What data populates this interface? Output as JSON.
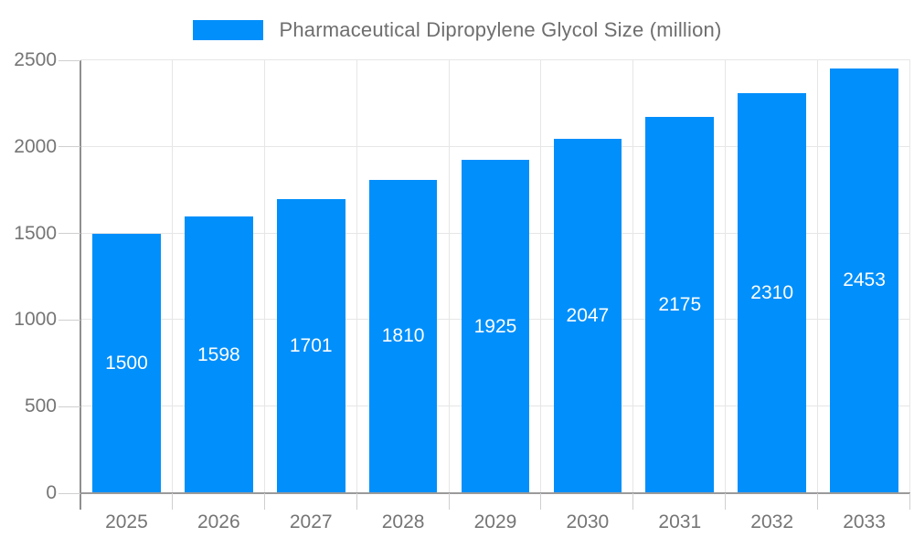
{
  "chart_data": {
    "type": "bar",
    "title": "Pharmaceutical Dipropylene Glycol Size (million)",
    "categories": [
      "2025",
      "2026",
      "2027",
      "2028",
      "2029",
      "2030",
      "2031",
      "2032",
      "2033"
    ],
    "values": [
      1500,
      1598,
      1701,
      1810,
      1925,
      2047,
      2175,
      2310,
      2453
    ],
    "ylim": [
      0,
      2500
    ],
    "yticks": [
      0,
      500,
      1000,
      1500,
      2000,
      2500
    ],
    "legend_position": "top",
    "grid": true,
    "bar_color": "#008FFB",
    "bar_label_color": "#ffffff",
    "axis_label_color": "#757575",
    "title_color": "#6e6e6e"
  }
}
